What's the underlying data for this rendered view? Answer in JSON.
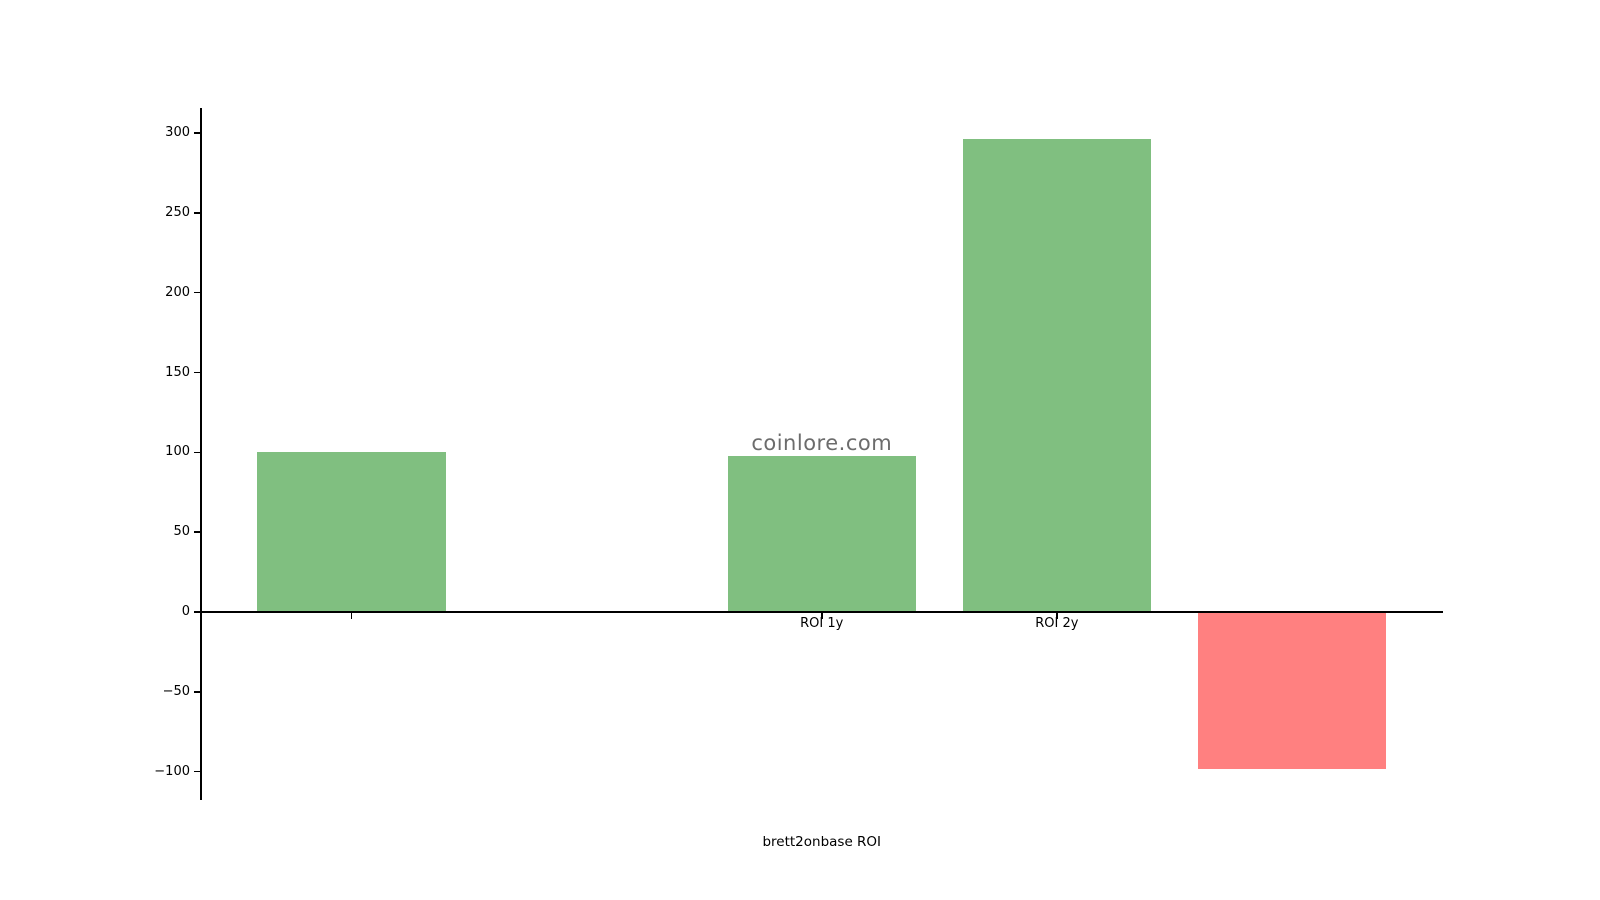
{
  "watermark": "coinlore.com",
  "chart_data": {
    "type": "bar",
    "title": "",
    "xlabel": "brett2onbase ROI",
    "ylabel": "",
    "categories": [
      "",
      "ROI 1y",
      "ROI 2y",
      ""
    ],
    "x": [
      0,
      2,
      3,
      4
    ],
    "values": [
      100,
      98,
      296,
      -98
    ],
    "bar_colors": [
      "#80bf80",
      "#80bf80",
      "#80bf80",
      "#ff8080"
    ],
    "positive_color": "#80bf80",
    "negative_color": "#ff8080",
    "yticks": [
      300,
      250,
      200,
      150,
      100,
      50,
      0,
      -50,
      -100
    ],
    "ylim": [
      -117.7,
      315.7
    ],
    "xlim": [
      -0.64,
      4.64
    ],
    "bar_width": 0.8,
    "grid": false,
    "legend": false,
    "axis_color": "#000000",
    "notes": "x tick at first bar has empty label; tick under last (red) bar is hidden behind the bar"
  }
}
